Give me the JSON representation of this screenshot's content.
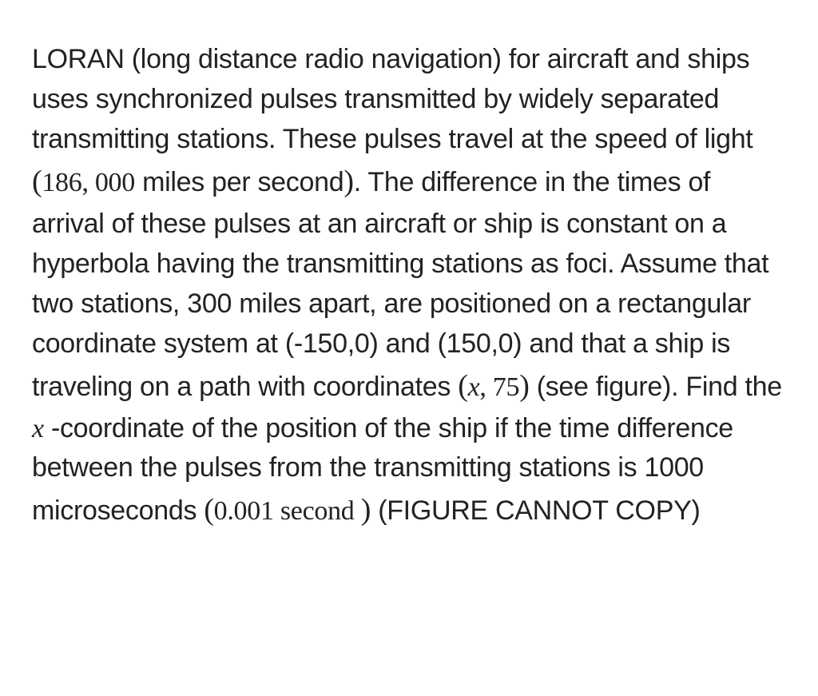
{
  "problem": {
    "text_1": "LORAN (long distance radio navigation) for aircraft and ships uses synchronized pulses transmitted by widely separated transmitting stations. These pulses travel at the speed of light ",
    "paren_open_1": "(",
    "speed_value": "186, 000",
    "speed_unit": " miles per second",
    "paren_close_1": ")",
    "text_2": ". The difference in the times of arrival of these pulses at an aircraft or ship is constant on a hyperbola having the transmitting stations as foci. Assume that two stations, 300 miles apart, are positioned on a rectangular coordinate system at (-150,0) and (150,0) and that a ship is traveling on a path with coordinates ",
    "paren_open_2": "(",
    "coord_x": "x",
    "coord_sep": ", ",
    "coord_y": "75",
    "paren_close_2": ")",
    "text_3": " (see figure). Find the ",
    "var_x": "x",
    "text_4": " -coordinate of the position of the ship if the time difference between the pulses from the transmitting stations is 1000 microseconds ",
    "paren_open_3": "(",
    "time_value": "0.001",
    "time_unit": " second ",
    "paren_close_3": ")",
    "text_5": " (FIGURE CANNOT COPY)"
  },
  "styles": {
    "background_color": "#ffffff",
    "text_color": "#222222",
    "font_size": 34
  }
}
